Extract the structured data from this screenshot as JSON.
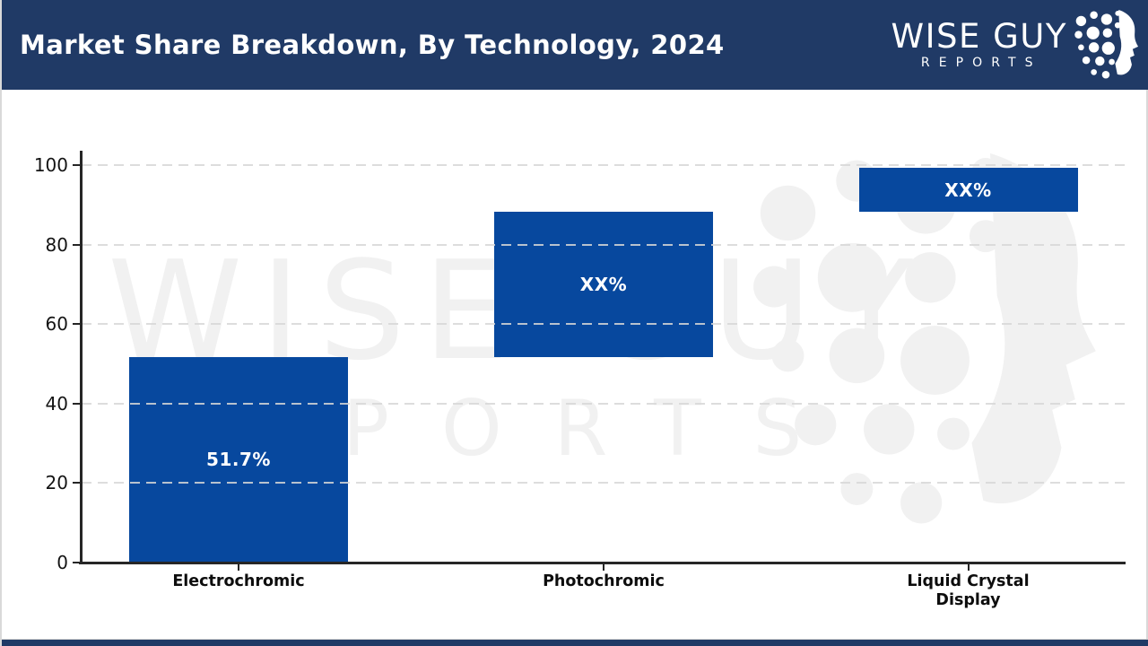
{
  "header": {
    "title": "Market Share Breakdown, By Technology, 2024",
    "logo": {
      "line1": "WISE GUY",
      "line2": "REPORTS"
    }
  },
  "watermark": {
    "line1": "WISE GUY",
    "line2": "REPORTS"
  },
  "colors": {
    "header_bg": "#203a66",
    "bar": "#07489e",
    "bar_label_text": "#ffffff",
    "gridline": "#d7d7d7",
    "axis": "#262626",
    "watermark": "#f1f1f1",
    "footer_bar": "#203a66"
  },
  "chart_data": {
    "type": "bar",
    "subtype": "floating-waterfall",
    "title": "Market Share Breakdown, By Technology, 2024",
    "categories": [
      "Electrochromic",
      "Photochromic",
      "Liquid Crystal Display"
    ],
    "segments": [
      {
        "category": "Electrochromic",
        "start": 0,
        "end": 51.7,
        "label": "51.7%"
      },
      {
        "category": "Photochromic",
        "start": 51.7,
        "end": 88.2,
        "label": "XX%"
      },
      {
        "category": "Liquid Crystal Display",
        "start": 88.2,
        "end": 99.3,
        "label": "XX%"
      }
    ],
    "xlabel": "",
    "ylabel": "",
    "ylim": [
      0,
      100
    ],
    "yticks": [
      0,
      20,
      40,
      60,
      80,
      100
    ],
    "grid": "horizontal-dashed",
    "legend": "none"
  }
}
